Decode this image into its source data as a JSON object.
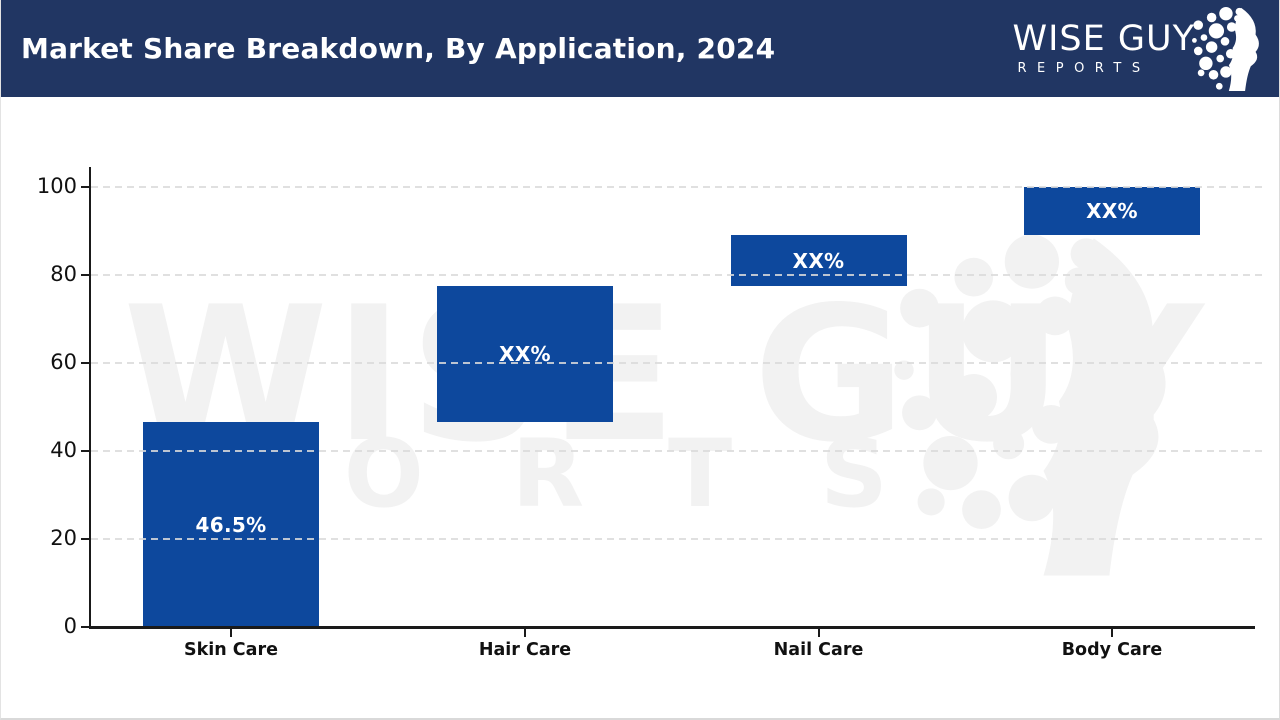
{
  "header": {
    "title": "Market Share Breakdown, By Application, 2024",
    "background_color": "#213663",
    "logo": {
      "line1": "WISE GUY",
      "line2": "REPORTS",
      "head_icon": "dotted-head-profile"
    }
  },
  "watermark": {
    "line1": "WISE GUY",
    "line2": "PORTS",
    "head_icon": "dotted-head-profile"
  },
  "chart_data": {
    "type": "bar",
    "subtype": "waterfall",
    "title": "Market Share Breakdown, By Application, 2024",
    "categories": [
      "Skin Care",
      "Hair Care",
      "Nail Care",
      "Body Care"
    ],
    "segments": [
      {
        "category": "Skin Care",
        "start": 0,
        "end": 46.5,
        "label": "46.5%"
      },
      {
        "category": "Hair Care",
        "start": 46.5,
        "end": 77.5,
        "label": "XX%"
      },
      {
        "category": "Nail Care",
        "start": 77.5,
        "end": 89,
        "label": "XX%"
      },
      {
        "category": "Body Care",
        "start": 89,
        "end": 100,
        "label": "XX%"
      }
    ],
    "xlabel": "",
    "ylabel": "",
    "ylim": [
      0,
      100
    ],
    "yticks": [
      0,
      20,
      40,
      60,
      80,
      100
    ],
    "grid": "horizontal-dashed",
    "legend": "none",
    "bar_color": "#0d489d",
    "bar_label_color": "#ffffff",
    "axis_color": "#1a1a1a",
    "gridline_color": "#dbdbdb"
  }
}
